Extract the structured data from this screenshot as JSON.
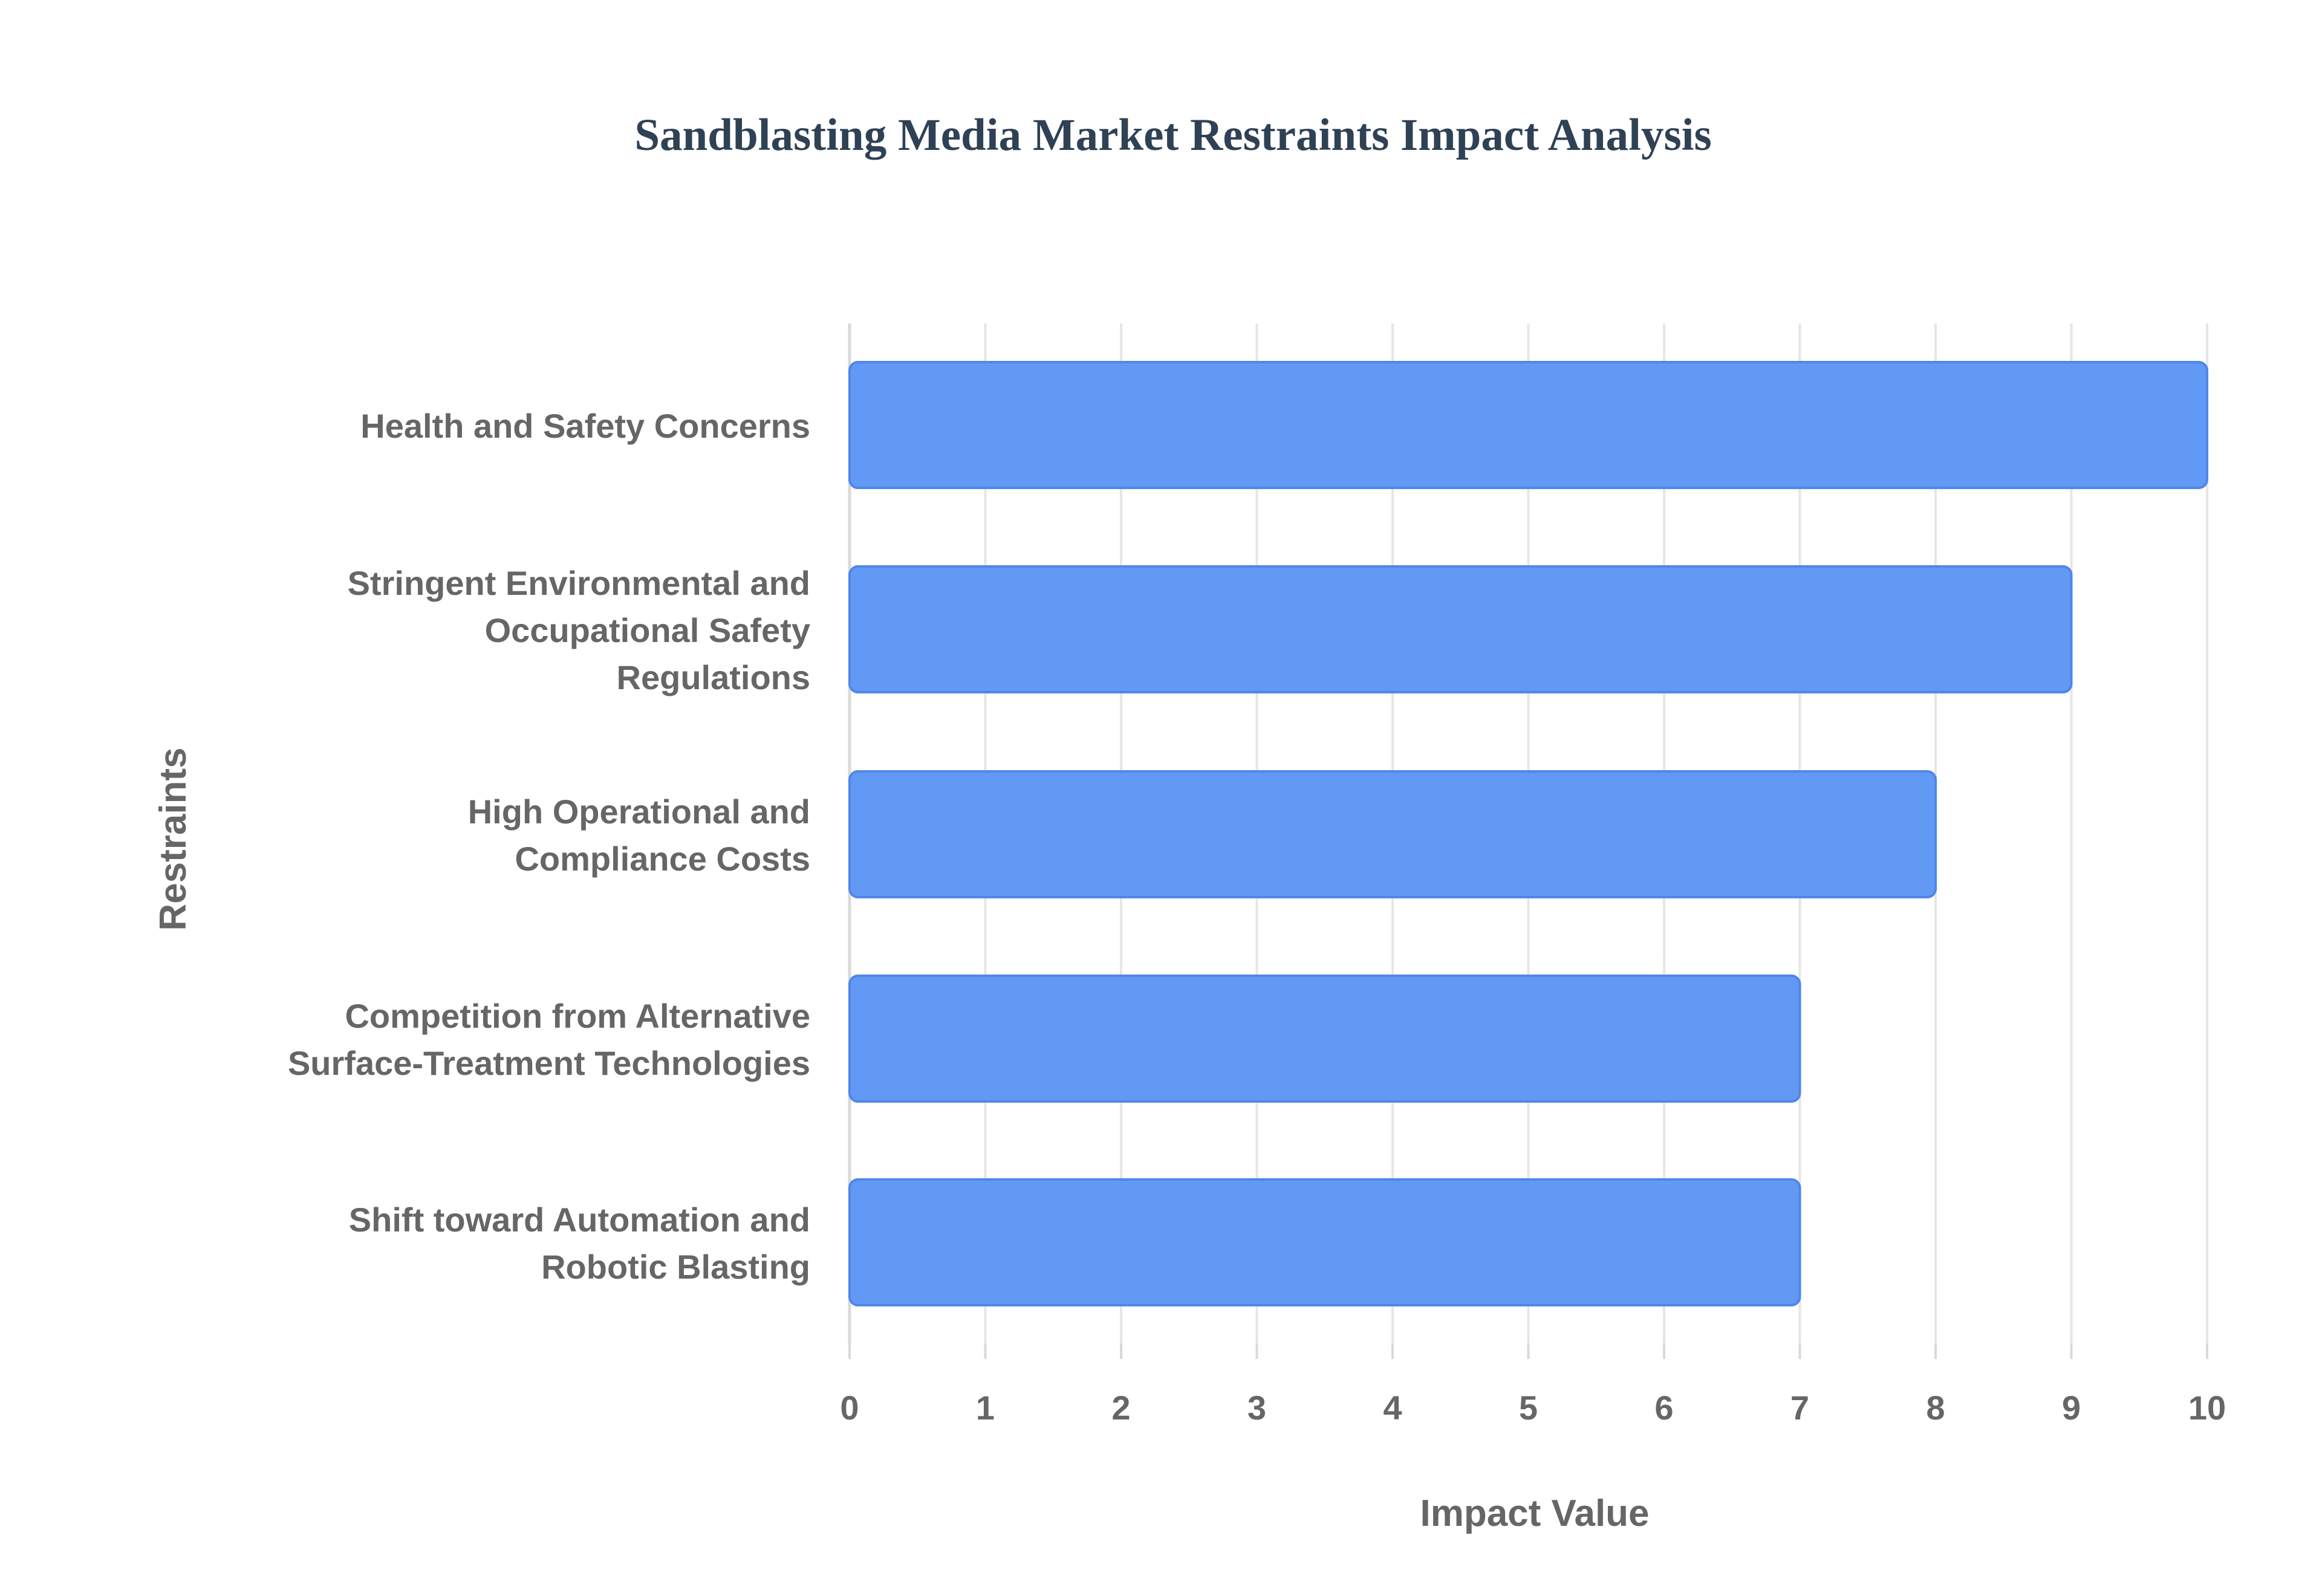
{
  "chart_data": {
    "type": "bar",
    "orientation": "horizontal",
    "title": "Sandblasting Media Market Restraints Impact Analysis",
    "xlabel": "Impact Value",
    "ylabel": "Restraints",
    "xlim": [
      0,
      10
    ],
    "xticks": [
      "0",
      "1",
      "2",
      "3",
      "4",
      "5",
      "6",
      "7",
      "8",
      "9",
      "10"
    ],
    "grid": true,
    "legend": "none",
    "categories": [
      [
        "Health and Safety Concerns"
      ],
      [
        "Stringent Environmental and",
        "Occupational Safety",
        "Regulations"
      ],
      [
        "High Operational and",
        "Compliance Costs"
      ],
      [
        "Competition from Alternative",
        "Surface-Treatment Technologies"
      ],
      [
        "Shift toward Automation and",
        "Robotic Blasting"
      ]
    ],
    "values": [
      10,
      9,
      8,
      7,
      7
    ],
    "colors": {
      "bar_fill": "#6199f5",
      "bar_stroke": "#4f86ea",
      "grid": "#e6e6e6",
      "axis": "#d9d9d9",
      "title": "#2f4155",
      "text": "#666666"
    }
  }
}
